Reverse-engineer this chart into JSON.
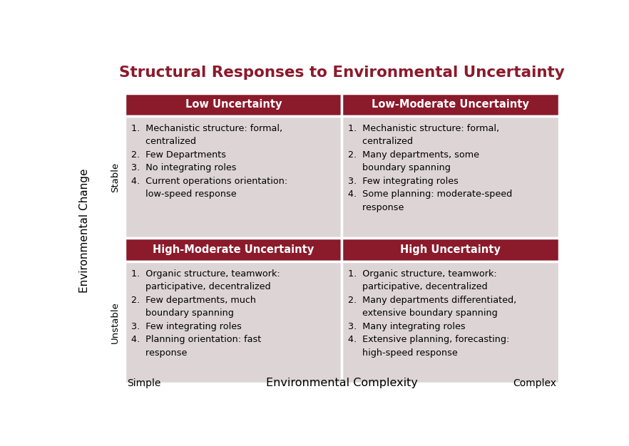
{
  "title": "Structural Responses to Environmental Uncertainty",
  "title_color": "#8B1A2B",
  "title_fontsize": 15.5,
  "header_bg_color": "#8B1A2B",
  "header_text_color": "#FFFFFF",
  "cell_bg_color": "#DDD5D5",
  "cell_text_color": "#000000",
  "border_color": "#FFFFFF",
  "background_color": "#FFFFFF",
  "headers": [
    "Low Uncertainty",
    "Low-Moderate Uncertainty",
    "High-Moderate Uncertainty",
    "High Uncertainty"
  ],
  "row_labels": [
    "Stable",
    "Unstable"
  ],
  "col_labels_bottom": [
    "Simple",
    "Complex"
  ],
  "x_axis_label": "Environmental Complexity",
  "y_axis_label": "Environmental Change",
  "cells": {
    "top_left": "1.  Mechanistic structure: formal,\n     centralized\n2.  Few Departments\n3.  No integrating roles\n4.  Current operations orientation:\n     low-speed response",
    "top_right": "1.  Mechanistic structure: formal,\n     centralized\n2.  Many departments, some\n     boundary spanning\n3.  Few integrating roles\n4.  Some planning: moderate-speed\n     response",
    "bottom_left": "1.  Organic structure, teamwork:\n     participative, decentralized\n2.  Few departments, much\n     boundary spanning\n3.  Few integrating roles\n4.  Planning orientation: fast\n     response",
    "bottom_right": "1.  Organic structure, teamwork:\n     participative, decentralized\n2.  Many departments differentiated,\n     extensive boundary spanning\n3.  Many integrating roles\n4.  Extensive planning, forecasting:\n     high-speed response"
  }
}
